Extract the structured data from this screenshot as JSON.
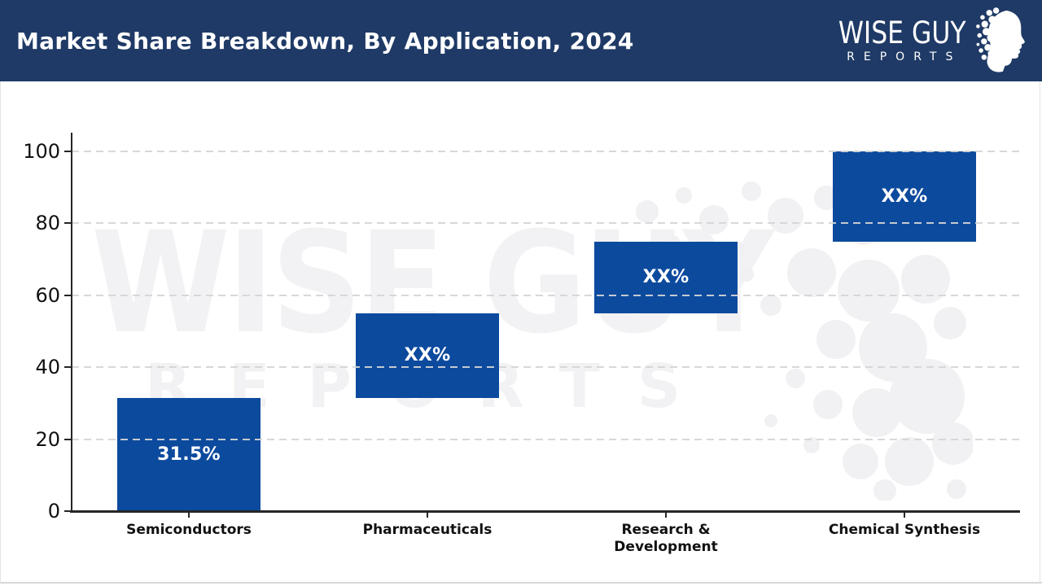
{
  "header": {
    "title": "Market Share Breakdown, By Application, 2024",
    "background_color": "#1f3a66",
    "logo": {
      "line1": "WISE GUY",
      "line2": "REPORTS"
    }
  },
  "watermark": {
    "line1": "WISE GUY",
    "line2": "REPORTS"
  },
  "chart_data": {
    "type": "bar",
    "subtype": "waterfall",
    "title": "Market Share Breakdown, By Application, 2024",
    "categories": [
      "Semiconductors",
      "Pharmaceuticals",
      "Research & Development",
      "Chemical Synthesis"
    ],
    "segments": [
      {
        "category": "Semiconductors",
        "category_lines": [
          "Semiconductors"
        ],
        "start": 0,
        "end": 31.5,
        "value_label": "31.5%"
      },
      {
        "category": "Pharmaceuticals",
        "category_lines": [
          "Pharmaceuticals"
        ],
        "start": 31.5,
        "end": 55,
        "value_label": "XX%"
      },
      {
        "category": "Research & Development",
        "category_lines": [
          "Research &",
          "Development"
        ],
        "start": 55,
        "end": 75,
        "value_label": "XX%"
      },
      {
        "category": "Chemical Synthesis",
        "category_lines": [
          "Chemical Synthesis"
        ],
        "start": 75,
        "end": 100,
        "value_label": "XX%"
      }
    ],
    "yticks": [
      0,
      20,
      40,
      60,
      80,
      100
    ],
    "ylim": [
      0,
      105
    ],
    "xlabel": "",
    "ylabel": "",
    "grid": true,
    "gridline_color": "#d5d5d5",
    "gridline_style": "dashed",
    "bar_color": "#0c4a9e",
    "value_label_color": "#ffffff",
    "legend": null
  }
}
